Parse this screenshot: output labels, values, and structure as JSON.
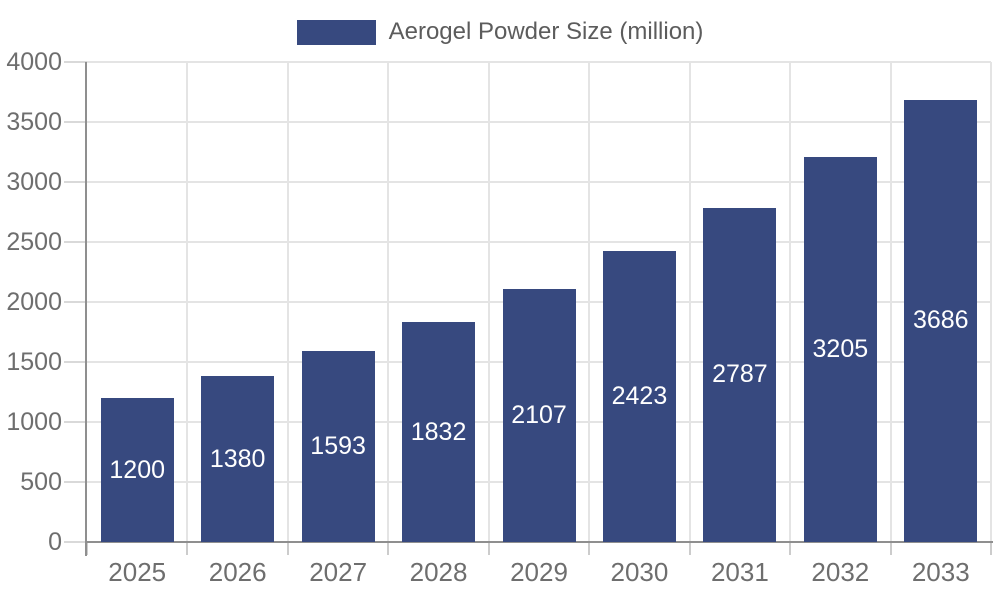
{
  "chart_data": {
    "type": "bar",
    "title": "Aerogel Powder Size (million)",
    "categories": [
      "2025",
      "2026",
      "2027",
      "2028",
      "2029",
      "2030",
      "2031",
      "2032",
      "2033"
    ],
    "values": [
      1200,
      1380,
      1593,
      1832,
      2107,
      2423,
      2787,
      3205,
      3686
    ],
    "series_name": "Aerogel Powder Size (million)",
    "xlabel": "",
    "ylabel": "",
    "ylim": [
      0,
      4000
    ],
    "yticks": [
      0,
      500,
      1000,
      1500,
      2000,
      2500,
      3000,
      3500,
      4000
    ],
    "grid": true,
    "legend_position": "top",
    "value_labels": "inside-center",
    "colors": {
      "bar": "#37497F",
      "value_label": "#FFFFFF",
      "gridline": "#E4E4E4",
      "axis_line": "#8F8F8F",
      "y_tick_mark": "#D9D9D9",
      "x_tick_mark": "#CCCCCC",
      "tick_label": "#6E6E6E",
      "legend_text": "#5C5C5C",
      "background": "#FFFFFF"
    }
  }
}
